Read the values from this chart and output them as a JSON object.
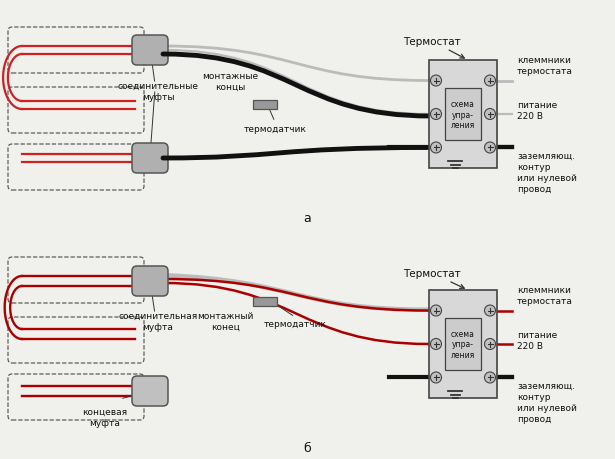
{
  "bg_color": "#f0f0ec",
  "red": "#cc2222",
  "dark": "#111111",
  "gray": "#888888",
  "lgray": "#bbbbbb",
  "dgray": "#555555",
  "panel_fill": "#d8d8d8",
  "panel_edge": "#444444",
  "conn_fill": "#aaaaaa",
  "label_a": "а",
  "label_b": "б",
  "label_thermostat": "Термостат",
  "label_schema": "схема\nупра-\nления",
  "label_klemmniki": "клеммники\nтермостата",
  "label_pitanie": "питание\n220 В",
  "label_zazeml": "заземляющ.\nконтур\nили нулевой\nпровод",
  "label_soedinitelnye": "соединительные\nмуфты",
  "label_montazhnye": "монтажные\nконцы",
  "label_termodatchik": "термодатчик",
  "label_soedinitelnaya": "соединительная\nмуфта",
  "label_montazhny": "монтажный\nконец",
  "label_kontsevaya": "концевая\nмуфта"
}
